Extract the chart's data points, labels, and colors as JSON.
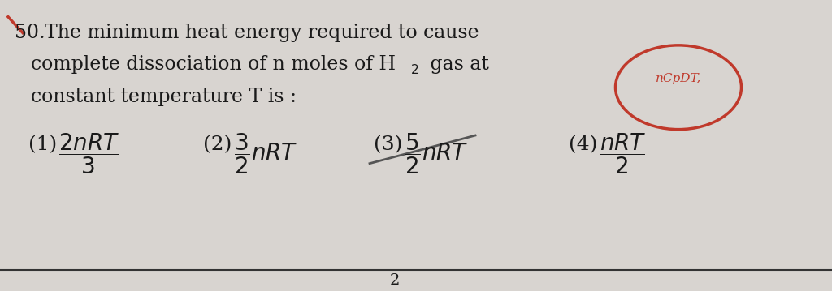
{
  "background_color": "#d8d4d0",
  "question_number": "50.",
  "question_text_line1": "The minimum heat energy required to cause",
  "question_text_line2": "complete dissociation of n moles of H$_2$ gas at",
  "question_text_line3": "constant temperature T is :",
  "option1_label": "(1)",
  "option1_expr": "$\\dfrac{2nRT}{3}$",
  "option2_label": "(2)",
  "option2_expr": "$\\dfrac{3}{2}nRT$",
  "option3_label": "(3)",
  "option3_expr": "$\\dfrac{5}{2}nRT$",
  "option4_label": "(4)",
  "option4_expr": "$\\dfrac{nRT}{2}$",
  "circle_annotation": "nCpDT,",
  "strikethrough_option": 3,
  "text_color": "#1a1a1a",
  "circle_color": "#c0392b",
  "font_size_question": 17,
  "font_size_options": 20,
  "font_size_number": 17,
  "fig_width": 10.24,
  "fig_height": 3.59
}
